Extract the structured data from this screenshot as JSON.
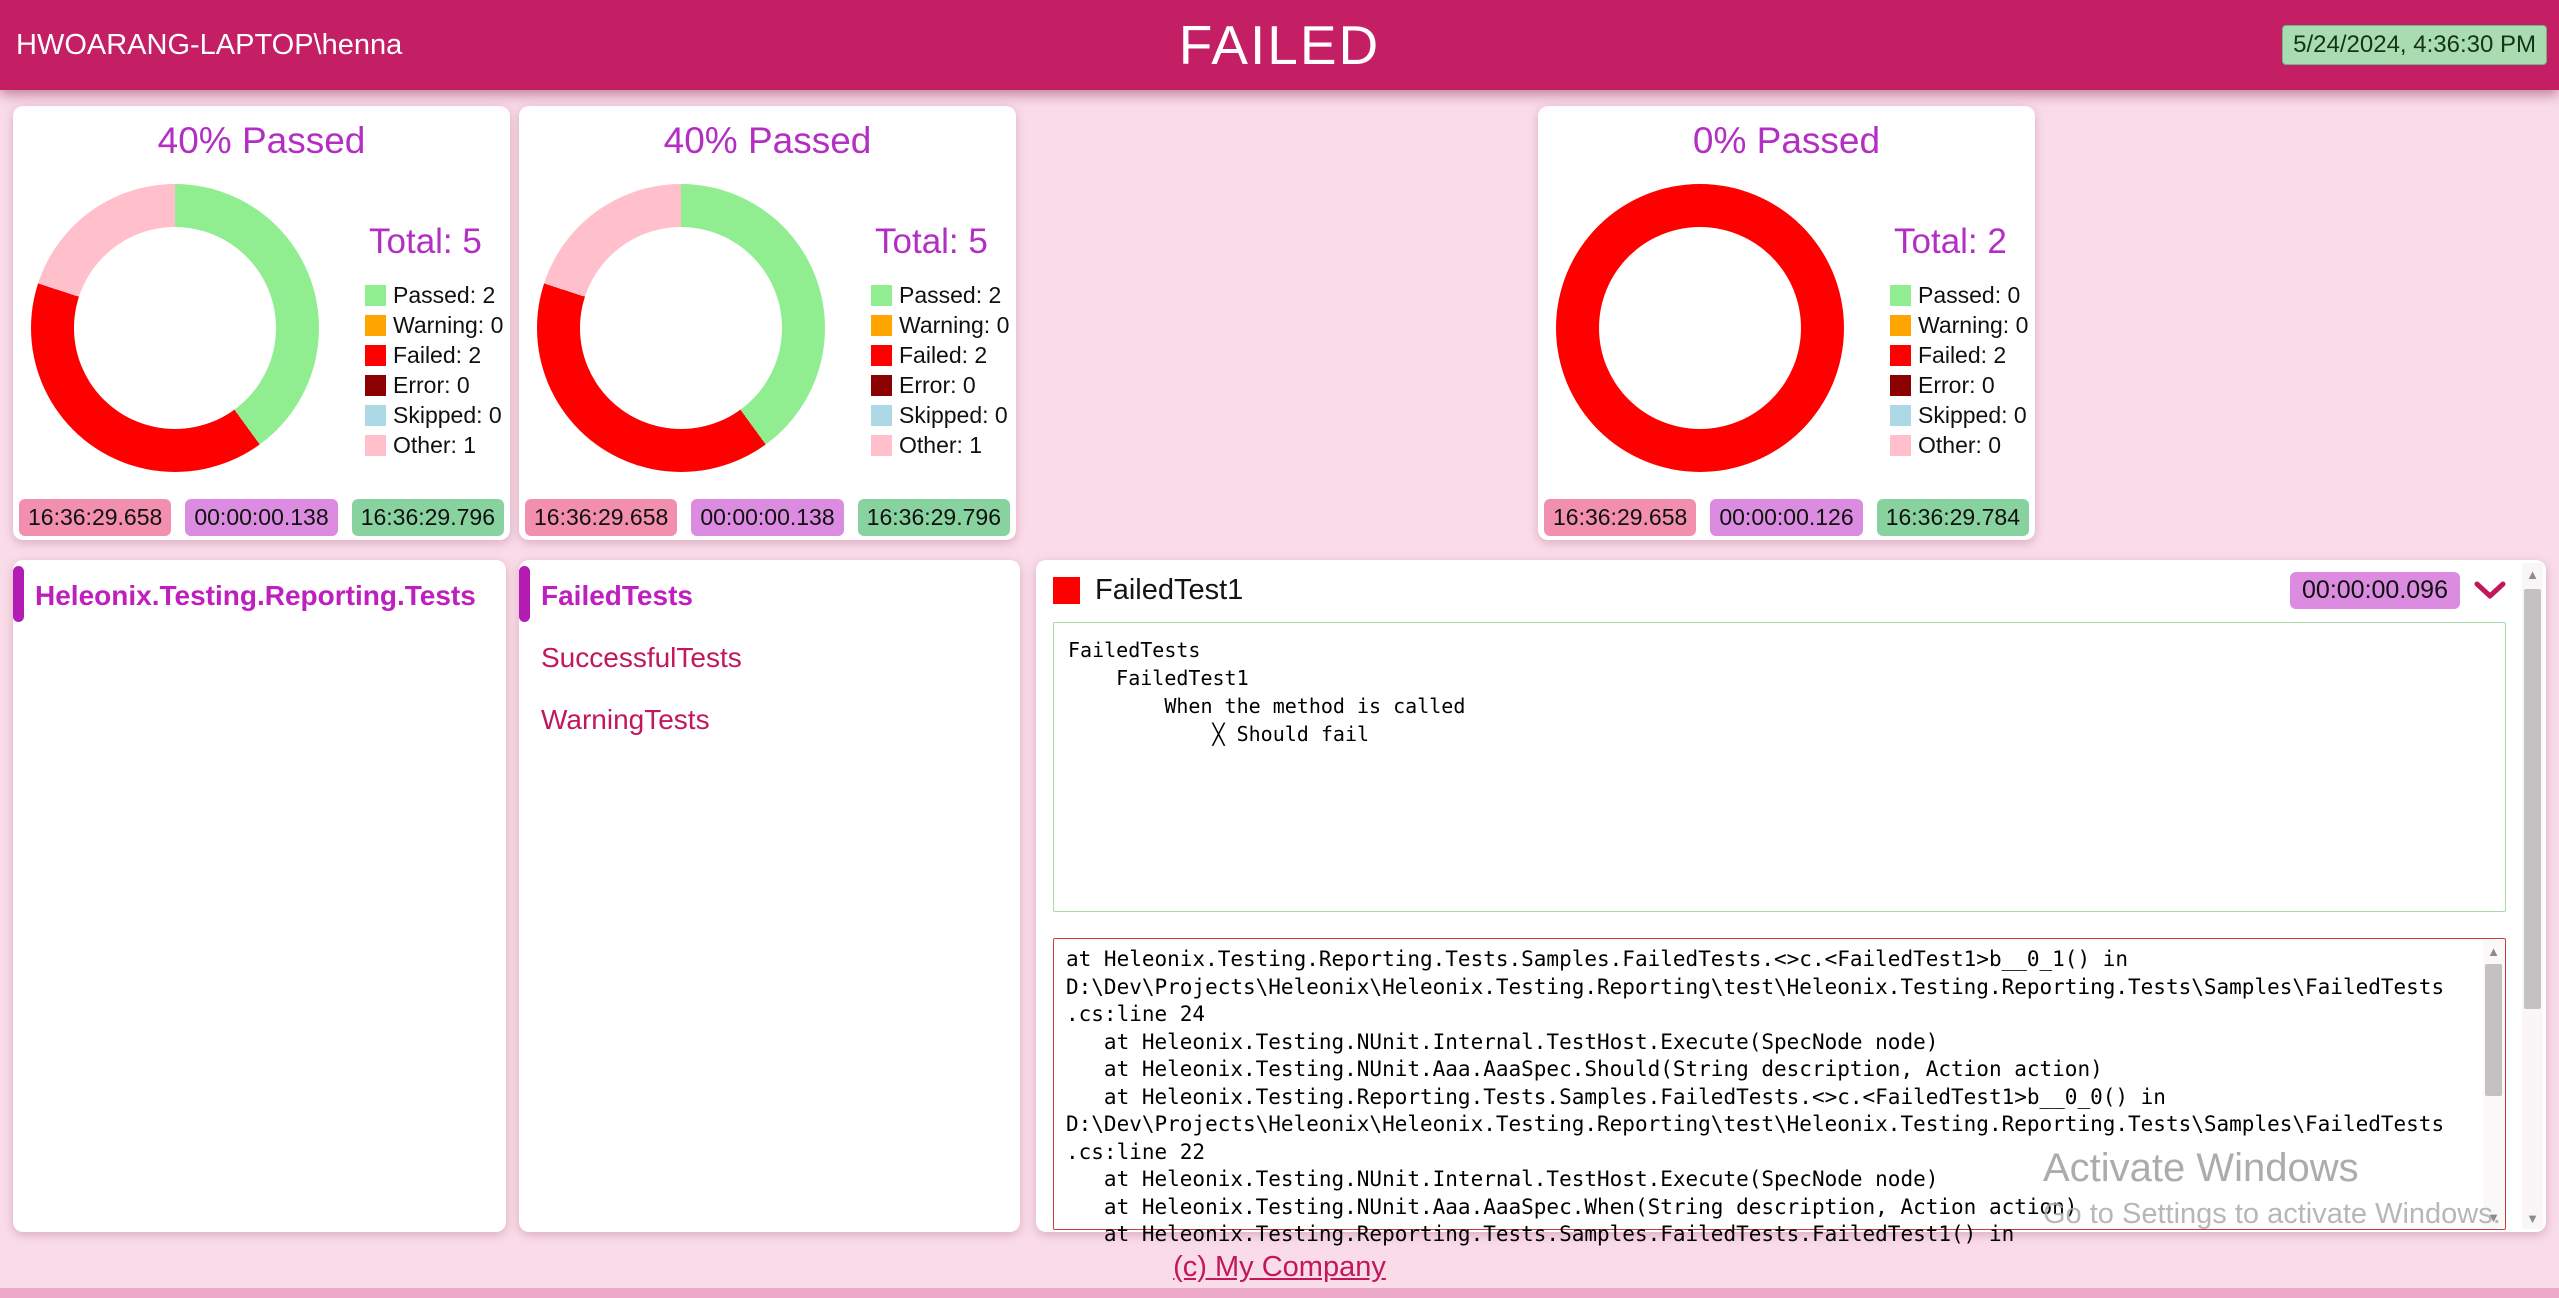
{
  "header": {
    "machine_user": "HWOARANG-LAPTOP\\henna",
    "status": "FAILED",
    "datetime": "5/24/2024, 4:36:30 PM"
  },
  "cards": [
    {
      "title": "40% Passed",
      "total_label": "Total: 5",
      "legend": [
        {
          "label": "Passed: 2",
          "color": "#90EE90"
        },
        {
          "label": "Warning: 0",
          "color": "#FFA500"
        },
        {
          "label": "Failed: 2",
          "color": "#FF0000"
        },
        {
          "label": "Error: 0",
          "color": "#8B0000"
        },
        {
          "label": "Skipped: 0",
          "color": "#ADD8E6"
        },
        {
          "label": "Other: 1",
          "color": "#FFC0CB"
        }
      ],
      "donut": {
        "segments": [
          {
            "color": "#90EE90",
            "from": 0,
            "to": 40
          },
          {
            "color": "#FF0000",
            "from": 40,
            "to": 80
          },
          {
            "color": "#FFC0CB",
            "from": 80,
            "to": 100
          }
        ]
      },
      "start_time": "16:36:29.658",
      "duration": "00:00:00.138",
      "end_time": "16:36:29.796"
    },
    {
      "title": "40% Passed",
      "total_label": "Total: 5",
      "legend": [
        {
          "label": "Passed: 2",
          "color": "#90EE90"
        },
        {
          "label": "Warning: 0",
          "color": "#FFA500"
        },
        {
          "label": "Failed: 2",
          "color": "#FF0000"
        },
        {
          "label": "Error: 0",
          "color": "#8B0000"
        },
        {
          "label": "Skipped: 0",
          "color": "#ADD8E6"
        },
        {
          "label": "Other: 1",
          "color": "#FFC0CB"
        }
      ],
      "donut": {
        "segments": [
          {
            "color": "#90EE90",
            "from": 0,
            "to": 40
          },
          {
            "color": "#FF0000",
            "from": 40,
            "to": 80
          },
          {
            "color": "#FFC0CB",
            "from": 80,
            "to": 100
          }
        ]
      },
      "start_time": "16:36:29.658",
      "duration": "00:00:00.138",
      "end_time": "16:36:29.796"
    },
    {
      "title": "0% Passed",
      "total_label": "Total: 2",
      "legend": [
        {
          "label": "Passed: 0",
          "color": "#90EE90"
        },
        {
          "label": "Warning: 0",
          "color": "#FFA500"
        },
        {
          "label": "Failed: 2",
          "color": "#FF0000"
        },
        {
          "label": "Error: 0",
          "color": "#8B0000"
        },
        {
          "label": "Skipped: 0",
          "color": "#ADD8E6"
        },
        {
          "label": "Other: 0",
          "color": "#FFC0CB"
        }
      ],
      "donut": {
        "segments": [
          {
            "color": "#FF0000",
            "from": 0,
            "to": 100
          }
        ]
      },
      "start_time": "16:36:29.658",
      "duration": "00:00:00.126",
      "end_time": "16:36:29.784"
    }
  ],
  "left_panel": {
    "title": "Heleonix.Testing.Reporting.Tests"
  },
  "middle_panel": {
    "items": [
      {
        "label": "FailedTests",
        "selected": true
      },
      {
        "label": "SuccessfulTests",
        "selected": false
      },
      {
        "label": "WarningTests",
        "selected": false
      }
    ]
  },
  "detail_panel": {
    "test_name": "FailedTest1",
    "duration": "00:00:00.096",
    "output_lines": [
      "FailedTests",
      "    FailedTest1",
      "        When the method is called",
      "            ╳ Should fail"
    ],
    "stack_lines": [
      "at Heleonix.Testing.Reporting.Tests.Samples.FailedTests.<>c.<FailedTest1>b__0_1() in",
      "D:\\Dev\\Projects\\Heleonix\\Heleonix.Testing.Reporting\\test\\Heleonix.Testing.Reporting.Tests\\Samples\\FailedTests",
      ".cs:line 24",
      "   at Heleonix.Testing.NUnit.Internal.TestHost.Execute(SpecNode node)",
      "   at Heleonix.Testing.NUnit.Aaa.AaaSpec.Should(String description, Action action)",
      "   at Heleonix.Testing.Reporting.Tests.Samples.FailedTests.<>c.<FailedTest1>b__0_0() in",
      "D:\\Dev\\Projects\\Heleonix\\Heleonix.Testing.Reporting\\test\\Heleonix.Testing.Reporting.Tests\\Samples\\FailedTests",
      ".cs:line 22",
      "   at Heleonix.Testing.NUnit.Internal.TestHost.Execute(SpecNode node)",
      "   at Heleonix.Testing.NUnit.Aaa.AaaSpec.When(String description, Action action)",
      "   at Heleonix.Testing.Reporting.Tests.Samples.FailedTests.FailedTest1() in"
    ]
  },
  "watermark": {
    "line1": "Activate Windows",
    "line2": "Go to Settings to activate Windows."
  },
  "footer": {
    "link": "(c) My Company"
  },
  "colors": {
    "header_bg": "#C41E64",
    "page_bg": "#FADCE9",
    "accent_magenta": "#BE1FBE",
    "accent_crimson": "#C2185B",
    "title_purple": "#B32FC4",
    "badge_start": "#F28FAE",
    "badge_duration": "#DB8CE0",
    "badge_end": "#87D29E",
    "date_badge": "#A9DCB1"
  }
}
